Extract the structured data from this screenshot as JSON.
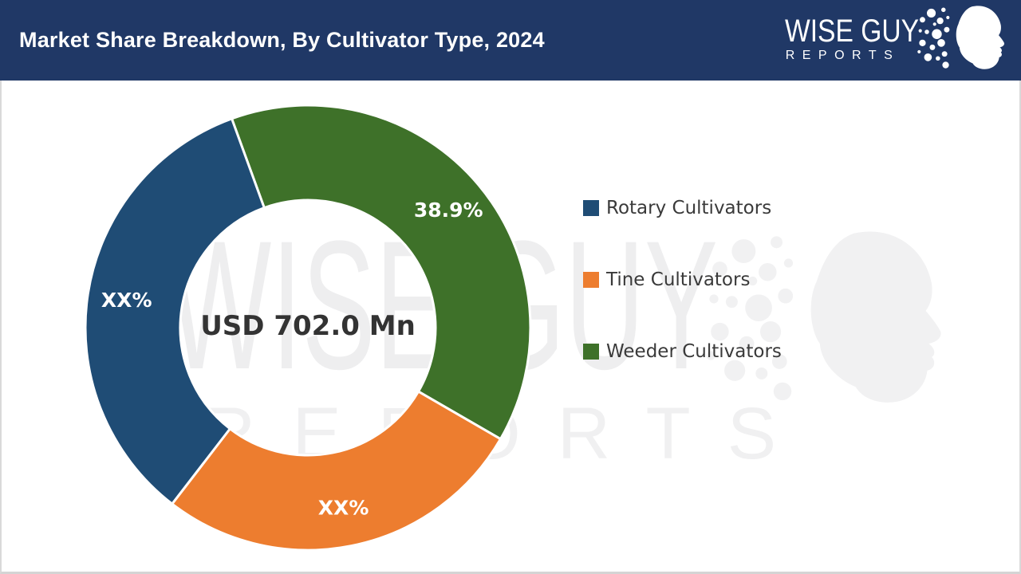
{
  "header": {
    "title": "Market Share Breakdown, By Cultivator Type, 2024",
    "logo": {
      "line1": "WISE GUY",
      "line2": "REPORTS"
    }
  },
  "watermark": {
    "line1": "WISE GUY",
    "line2": "REPORTS"
  },
  "chart_data": {
    "type": "donut",
    "title": "Market Share Breakdown, By Cultivator Type, 2024",
    "center_label": "USD 702.0 Mn",
    "start_angle_deg": -20,
    "units": "percent of market share",
    "slices": [
      {
        "name": "Weeder Cultivators",
        "value": 38.9,
        "label": "38.9%",
        "color": "#3e7129"
      },
      {
        "name": "Tine Cultivators",
        "value": 27.1,
        "label": "XX%",
        "color": "#ed7d2f"
      },
      {
        "name": "Rotary Cultivators",
        "value": 34.0,
        "label": "XX%",
        "color": "#1f4c75"
      }
    ],
    "legend_position": "right"
  },
  "legend": {
    "items": [
      {
        "label": "Rotary Cultivators",
        "color": "#1f4c75"
      },
      {
        "label": "Tine Cultivators",
        "color": "#ed7d2f"
      },
      {
        "label": "Weeder Cultivators",
        "color": "#3e7129"
      }
    ]
  },
  "colors": {
    "header_bg": "#203866",
    "watermark": "#eeeeef",
    "center_text": "#333333",
    "legend_text": "#3a3a3a",
    "slice_separator": "#ffffff"
  }
}
